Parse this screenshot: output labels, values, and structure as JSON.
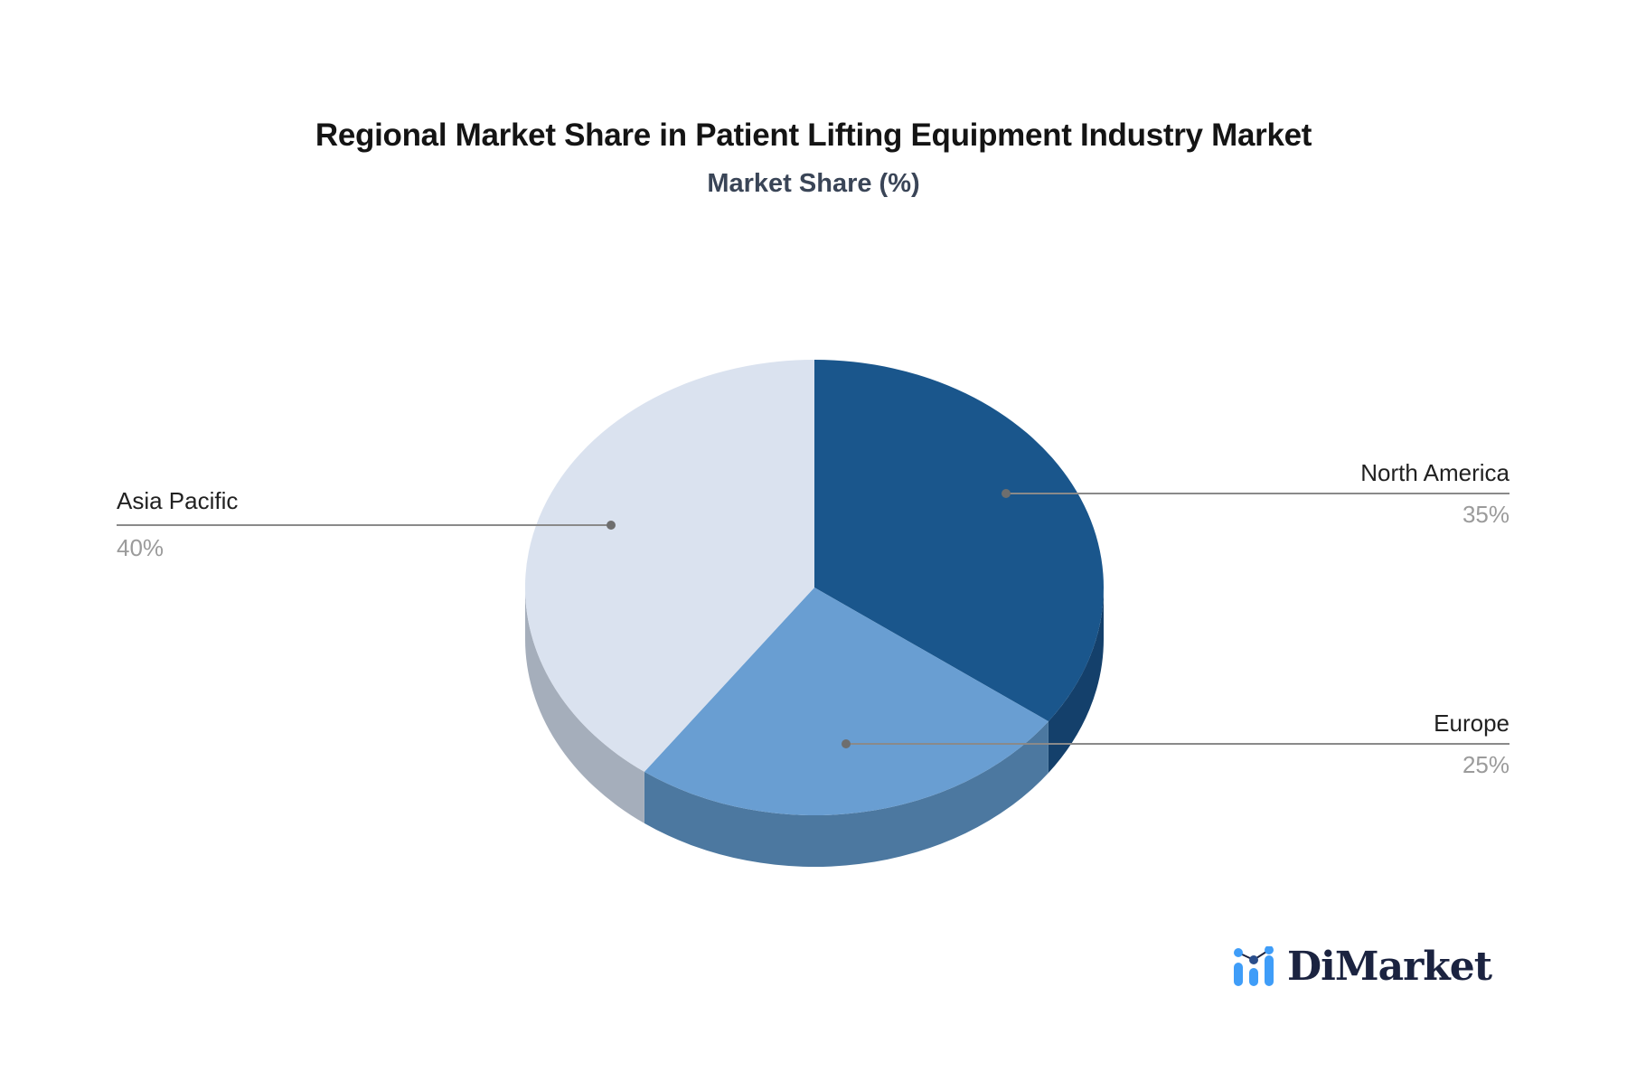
{
  "title": "Regional Market Share in Patient Lifting Equipment Industry Market",
  "subtitle": "Market Share (%)",
  "chart_data": {
    "type": "pie",
    "style": "3d",
    "title": "Regional Market Share in Patient Lifting Equipment Industry Market",
    "subtitle": "Market Share (%)",
    "unit": "%",
    "start_angle_deg": 0,
    "direction": "clockwise",
    "legend": "none",
    "labels_position": "outside-with-connectors",
    "slices": [
      {
        "label": "North America",
        "value": 35,
        "pct_label": "35%",
        "color": "#1A568C",
        "side_color": "#14406B"
      },
      {
        "label": "Europe",
        "value": 25,
        "pct_label": "25%",
        "color": "#699ED2",
        "side_color": "#4C78A0"
      },
      {
        "label": "Asia Pacific",
        "value": 40,
        "pct_label": "40%",
        "color": "#DAE2EF",
        "side_color": "#A5AEBB"
      }
    ]
  },
  "logo": {
    "text": "DiMarket",
    "icon": "bar-chart-logo-icon"
  },
  "colors": {
    "background": "#FFFFFF",
    "title_text": "#141414",
    "subtitle_text": "#3A4557",
    "label_text": "#212121",
    "pct_text": "#9B9B9B",
    "connector": "#8A8A8A",
    "connector_dot": "#6E6E6E",
    "logo_text": "#1B2340",
    "logo_accent": "#3F9DF8",
    "logo_accent_dark": "#2A4E8C"
  }
}
